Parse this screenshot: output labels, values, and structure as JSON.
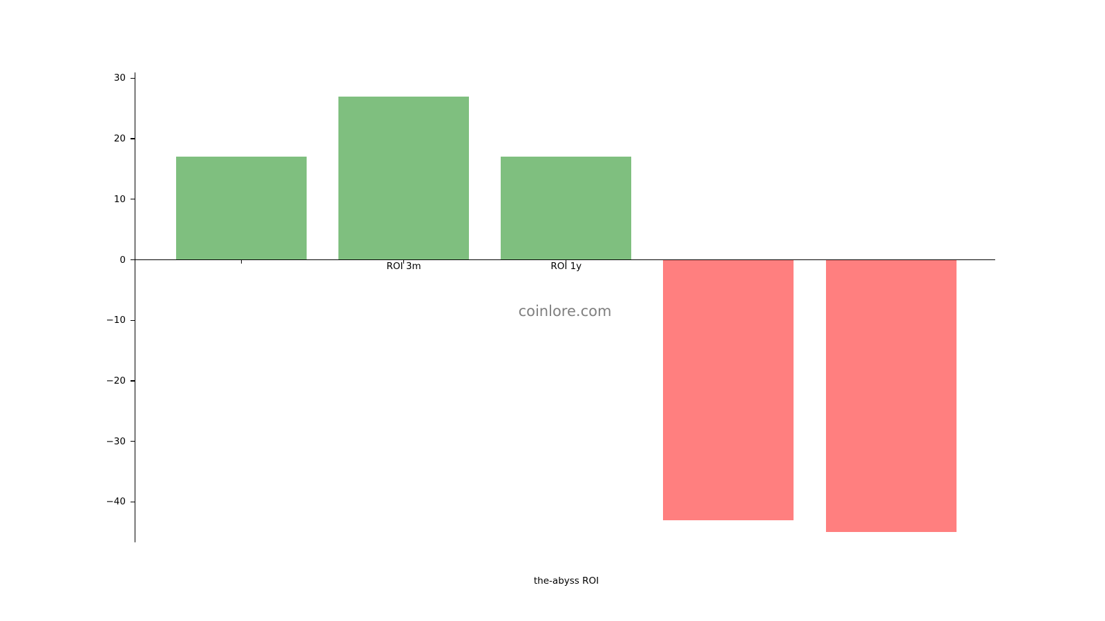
{
  "chart_data": {
    "type": "bar",
    "title": "",
    "xlabel": "the-abyss ROI",
    "ylabel": "",
    "categories": [
      "",
      "ROI 3m",
      "ROI 1y",
      "",
      ""
    ],
    "values": [
      17,
      27,
      17,
      -43,
      -45
    ],
    "positive_color": "#7fbf7f",
    "negative_color": "#ff7f7f",
    "bar_colors": [
      "#7fbf7f",
      "#7fbf7f",
      "#7fbf7f",
      "#ff7f7f",
      "#ff7f7f"
    ],
    "ytick_values": [
      30,
      20,
      10,
      0,
      -10,
      -20,
      -30,
      -40
    ],
    "ytick_labels": [
      "30",
      "20",
      "10",
      "0",
      "−10",
      "−20",
      "−30",
      "−40"
    ],
    "ylim": [
      -46.6,
      31.0
    ],
    "grid": false,
    "legend": null,
    "axis_color": "#000000",
    "text_color": "#000000",
    "watermark": "coinlore.com",
    "watermark_color": "#7f7f7f"
  }
}
